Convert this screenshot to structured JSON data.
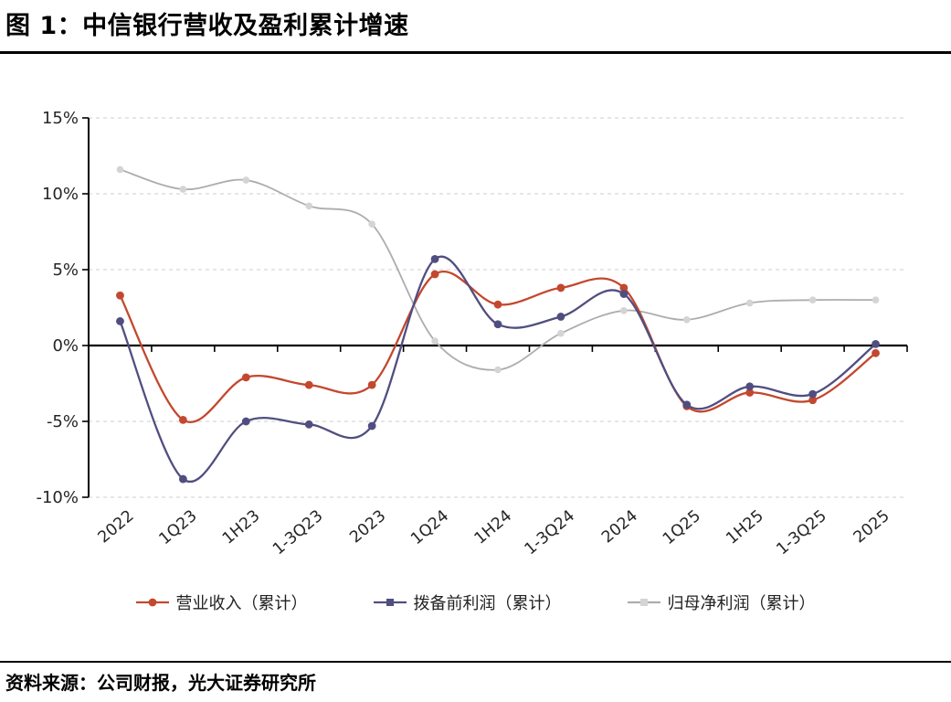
{
  "page": {
    "title": "图 1：中信银行营收及盈利累计增速",
    "source": "资料来源：公司财报，光大证券研究所"
  },
  "chart_data": {
    "type": "line",
    "title": "图 1：中信银行营收及盈利累计增速",
    "categories": [
      "2022",
      "1Q23",
      "1H23",
      "1-3Q23",
      "2023",
      "1Q24",
      "1H24",
      "1-3Q24",
      "2024",
      "1Q25",
      "1H25",
      "1-3Q25",
      "2025"
    ],
    "series": [
      {
        "name": "营业收入（累计）",
        "color": "#C3482E",
        "marker_color": "#C3482E",
        "marker": "circle",
        "line_width": 2.3,
        "values": [
          3.3,
          -4.9,
          -2.1,
          -2.6,
          -2.6,
          4.7,
          2.7,
          3.8,
          3.8,
          -4.0,
          -3.1,
          -3.6,
          -0.5
        ]
      },
      {
        "name": "拨备前利润（累计）",
        "color": "#504E80",
        "marker_color": "#504E80",
        "marker": "square",
        "line_width": 2.3,
        "values": [
          1.6,
          -8.8,
          -5.0,
          -5.2,
          -5.3,
          5.7,
          1.4,
          1.9,
          3.4,
          -3.9,
          -2.7,
          -3.2,
          0.1
        ]
      },
      {
        "name": "归母净利润（累计）",
        "color": "#ADADAD",
        "marker_color": "#D4D4D4",
        "marker": "square",
        "line_width": 1.8,
        "values": [
          11.6,
          10.3,
          10.9,
          9.2,
          8.0,
          0.3,
          -1.6,
          0.8,
          2.3,
          1.7,
          2.8,
          3.0,
          3.0
        ]
      }
    ],
    "xlabel": "",
    "ylabel": "",
    "yticks": [
      15,
      10,
      5,
      0,
      -5,
      -10
    ],
    "ytick_suffix": "%",
    "ylim": [
      -10,
      15
    ],
    "grid": "horizontal-dashed",
    "grid_color": "#D8D8D8",
    "axis_color": "#000000",
    "legend_position": "bottom",
    "smooth": true
  }
}
